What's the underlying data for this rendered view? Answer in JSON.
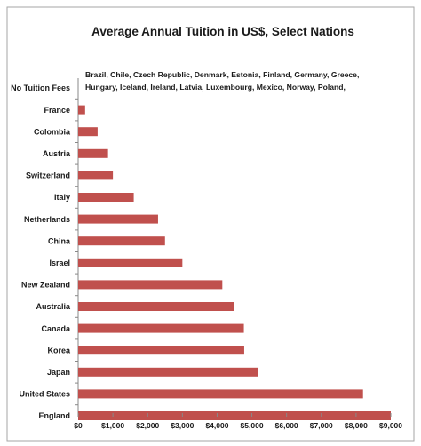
{
  "chart_data": {
    "type": "bar",
    "orientation": "horizontal",
    "title": "Average Annual Tuition in US$, Select Nations",
    "xlabel": "",
    "ylabel": "",
    "xlim": [
      0,
      9000
    ],
    "x_ticks": [
      "$0",
      "$1,000",
      "$2,000",
      "$3,000",
      "$4,000",
      "$5,000",
      "$6,000",
      "$7,000",
      "$8,000",
      "$9,000"
    ],
    "x_tick_values": [
      0,
      1000,
      2000,
      3000,
      4000,
      5000,
      6000,
      7000,
      8000,
      9000
    ],
    "grid": false,
    "legend": "none",
    "bar_color": "#c0504d",
    "categories": [
      "No Tuition Fees",
      "France",
      "Colombia",
      "Austria",
      "Switzerland",
      "Italy",
      "Netherlands",
      "China",
      "Israel",
      "New Zealand",
      "Australia",
      "Canada",
      "Korea",
      "Japan",
      "United States",
      "England"
    ],
    "values": [
      0,
      200,
      560,
      860,
      1000,
      1600,
      2300,
      2500,
      3000,
      4150,
      4500,
      4770,
      4780,
      5180,
      8200,
      9000
    ],
    "annotation_lines": [
      "Brazil, Chile, Czech Republic, Denmark, Estonia, Finland, Germany, Greece,",
      "Hungary, Iceland, Ireland, Latvia, Luxembourg, Mexico, Norway, Poland,"
    ]
  }
}
